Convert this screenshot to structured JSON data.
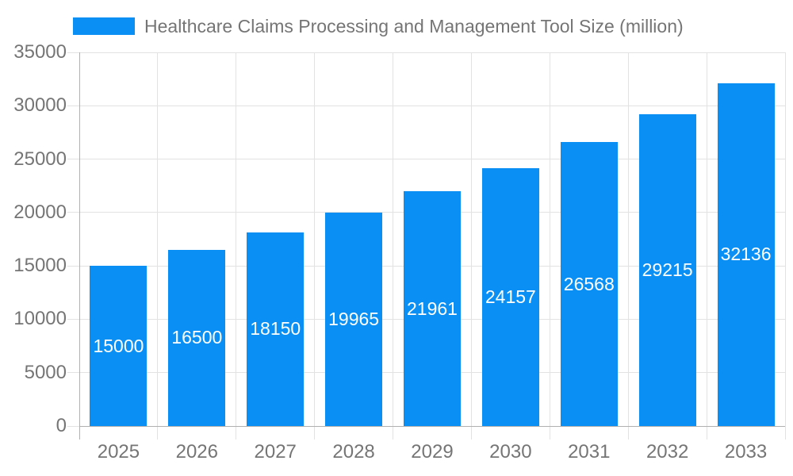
{
  "chart_data": {
    "type": "bar",
    "title": "Healthcare Claims Processing and Management Tool Size (million)",
    "categories": [
      "2025",
      "2026",
      "2027",
      "2028",
      "2029",
      "2030",
      "2031",
      "2032",
      "2033"
    ],
    "values": [
      15000,
      16500,
      18150,
      19965,
      21961,
      24157,
      26568,
      29215,
      32136
    ],
    "xlabel": "",
    "ylabel": "",
    "ylim": [
      0,
      35000
    ],
    "ytick_step": 5000,
    "yticks": [
      0,
      5000,
      10000,
      15000,
      20000,
      25000,
      30000,
      35000
    ],
    "grid": true,
    "legend_position": "top-left",
    "bar_color": "#0a90f5",
    "bar_label_color": "#ffffff",
    "text_color": "#757575",
    "grid_color": "#e2e2e2",
    "axis_color": "#b0b0b0"
  }
}
